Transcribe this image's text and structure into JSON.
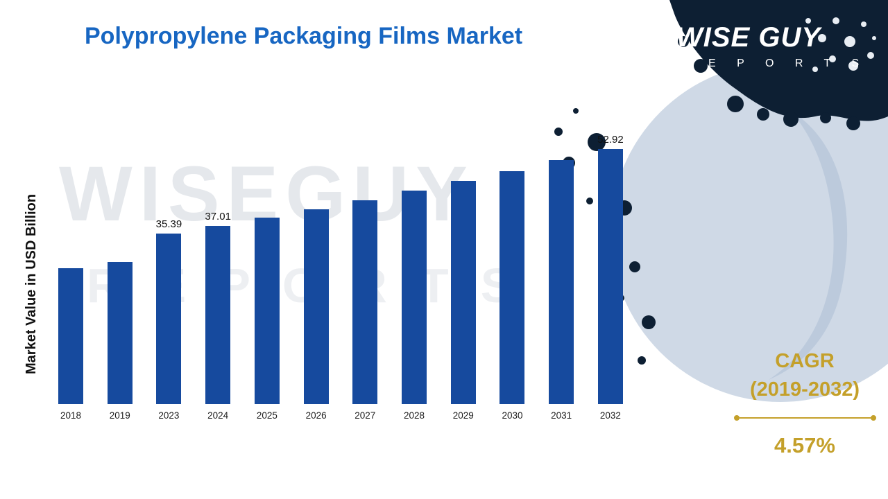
{
  "title": "Polypropylene Packaging Films Market",
  "y_axis_label": "Market Value in USD Billion",
  "watermark": {
    "line1": "WISEGUY",
    "line2": "REPORTS"
  },
  "logo": {
    "line1": "WISE GUY",
    "line2": "R E P O R T S"
  },
  "cagr": {
    "label": "CAGR",
    "range": "(2019-2032)",
    "value": "4.57%"
  },
  "colors": {
    "bar": "#164A9E",
    "title": "#1766C2",
    "navy": "#0D1F33",
    "head_circle": "#CFD9E6",
    "gold": "#C4A02A"
  },
  "chart_data": {
    "type": "bar",
    "title": "Polypropylene Packaging Films Market",
    "xlabel": "",
    "ylabel": "Market Value in USD Billion",
    "unit": "USD Billion",
    "categories": [
      "2018",
      "2019",
      "2023",
      "2024",
      "2025",
      "2026",
      "2027",
      "2028",
      "2029",
      "2030",
      "2031",
      "2032"
    ],
    "values": [
      28.2,
      29.5,
      35.39,
      37.01,
      38.7,
      40.47,
      42.32,
      44.25,
      46.28,
      48.39,
      50.6,
      52.92
    ],
    "point_labels": [
      "",
      "",
      "35.39",
      "37.01",
      "",
      "",
      "",
      "",
      "",
      "",
      "",
      "52.92"
    ],
    "ylim": [
      0,
      55
    ],
    "grid": false,
    "legend": false,
    "cagr_percent": 4.57,
    "cagr_period": "2019-2032"
  }
}
